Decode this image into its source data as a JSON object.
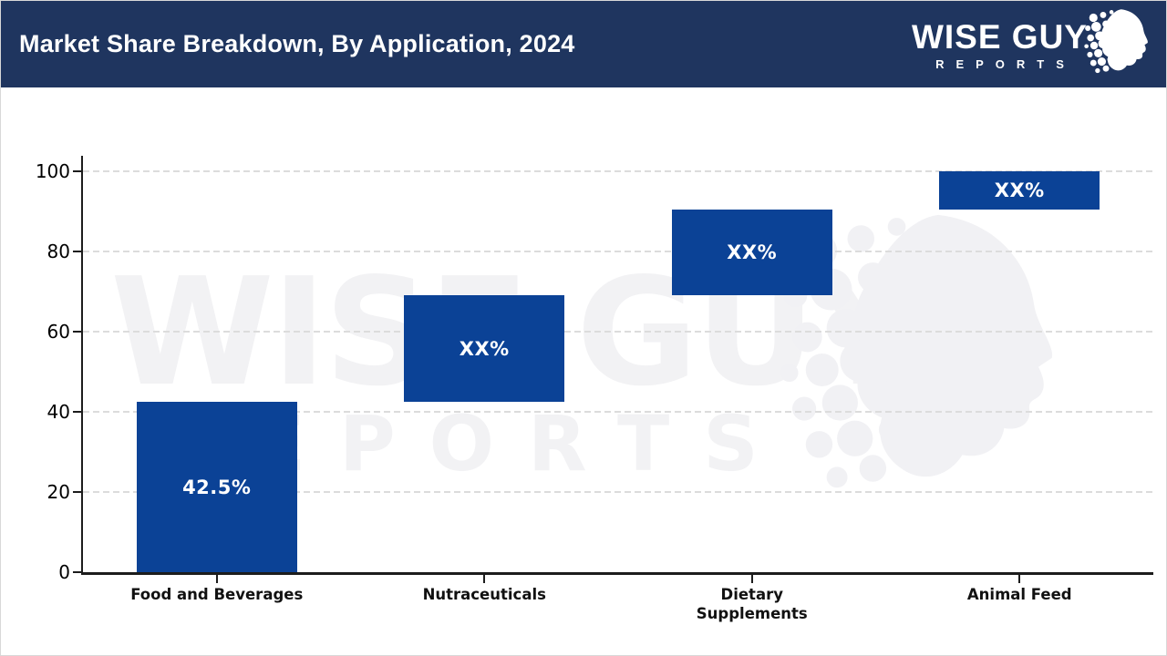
{
  "header": {
    "title": "Market Share Breakdown, By Application, 2024",
    "logo": {
      "name": "WISE GUY",
      "subtitle": "REPORTS"
    }
  },
  "watermark": {
    "line1": "WISE GUY.",
    "line2": "REPORTS"
  },
  "chart_data": {
    "type": "bar",
    "variant": "waterfall",
    "title": "Market Share Breakdown, By Application, 2024",
    "categories": [
      "Food and Beverages",
      "Nutraceuticals",
      "Dietary Supplements",
      "Animal Feed"
    ],
    "category_label_lines": [
      [
        "Food and Beverages"
      ],
      [
        "Nutraceuticals"
      ],
      [
        "Dietary",
        "Supplements"
      ],
      [
        "Animal Feed"
      ]
    ],
    "segments": [
      {
        "category": "Food and Beverages",
        "start": 0,
        "end": 42.5,
        "label": "42.5%"
      },
      {
        "category": "Nutraceuticals",
        "start": 42.5,
        "end": 69,
        "label": "XX%"
      },
      {
        "category": "Dietary Supplements",
        "start": 69,
        "end": 90.5,
        "label": "XX%"
      },
      {
        "category": "Animal Feed",
        "start": 90.5,
        "end": 100,
        "label": "XX%"
      }
    ],
    "ylim": [
      0,
      100
    ],
    "yticks": [
      0,
      20,
      40,
      60,
      80,
      100
    ],
    "grid": "horizontal-dashed",
    "legend": "none",
    "bar_color": "#0b4296",
    "label_color": "#ffffff"
  },
  "colors": {
    "header_bg": "#1f355f",
    "bar": "#0b4296",
    "axis": "#1c1c1c",
    "gridline": "#dcdcdc",
    "watermark": "#f1f1f4",
    "page_border": "#d8d8d8"
  }
}
